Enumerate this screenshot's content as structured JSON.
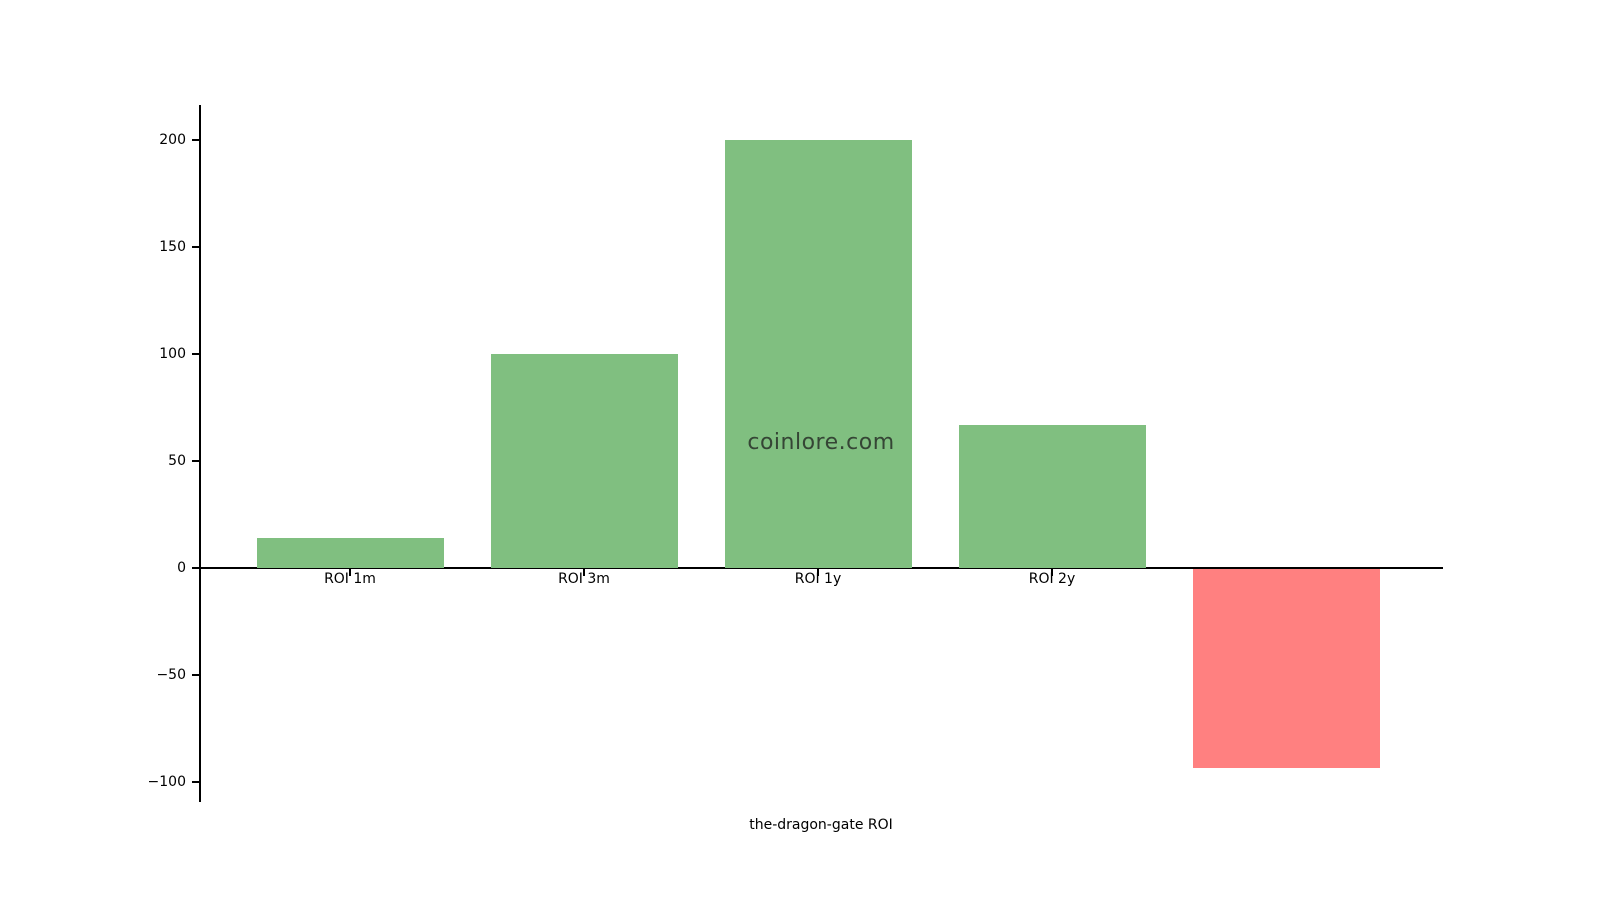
{
  "watermark": {
    "text": "coinlore.com",
    "color": "rgba(42,52,42,0.88)"
  },
  "footer_title": {
    "text": "the-dragon-gate ROI"
  },
  "chart_data": {
    "type": "bar",
    "title": "the-dragon-gate ROI",
    "watermark": "coinlore.com",
    "categories": [
      "ROI 1m",
      "ROI 3m",
      "ROI 1y",
      "ROI 2y",
      ""
    ],
    "values": [
      14,
      100,
      200,
      67,
      -93
    ],
    "bar_colors": [
      "#80bf80",
      "#80bf80",
      "#80bf80",
      "#80bf80",
      "#ff8080"
    ],
    "positive_color": "#80bf80",
    "negative_color": "#ff8080",
    "axis_color": "#000000",
    "yticks": [
      200,
      150,
      100,
      50,
      0,
      -50,
      -100
    ],
    "ylim": [
      -109,
      216
    ],
    "xlabel": "",
    "ylabel": "",
    "grid": false,
    "legend": false
  }
}
